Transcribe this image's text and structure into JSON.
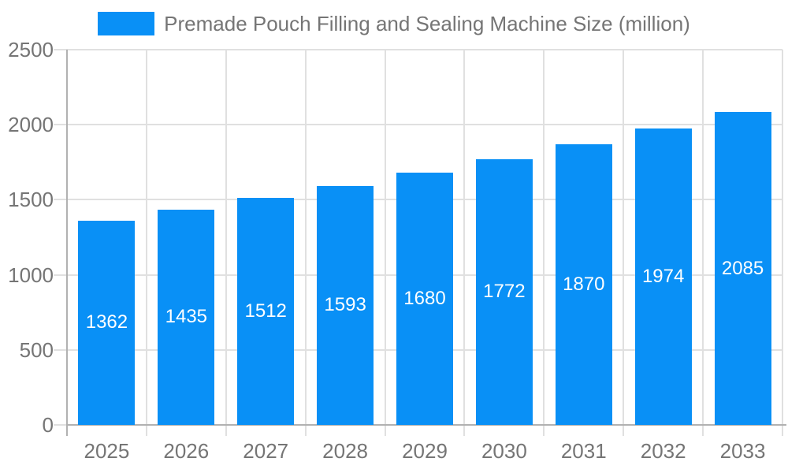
{
  "chart_data": {
    "type": "bar",
    "title": "Premade Pouch Filling and Sealing Machine Size (million)",
    "categories": [
      "2025",
      "2026",
      "2027",
      "2028",
      "2029",
      "2030",
      "2031",
      "2032",
      "2033"
    ],
    "values": [
      1362,
      1435,
      1512,
      1593,
      1680,
      1772,
      1870,
      1974,
      2085
    ],
    "xlabel": "",
    "ylabel": "",
    "ylim": [
      0,
      2500
    ],
    "yticks": [
      0,
      500,
      1000,
      1500,
      2000,
      2500
    ],
    "grid": true,
    "legend_position": "top-center",
    "bar_color": "#0990f6",
    "bar_label_color": "#ffffff",
    "grid_color": "#e0e0e0",
    "axis_color": "#b1b1b1",
    "text_color": "#757575",
    "background_color": "#ffffff"
  }
}
